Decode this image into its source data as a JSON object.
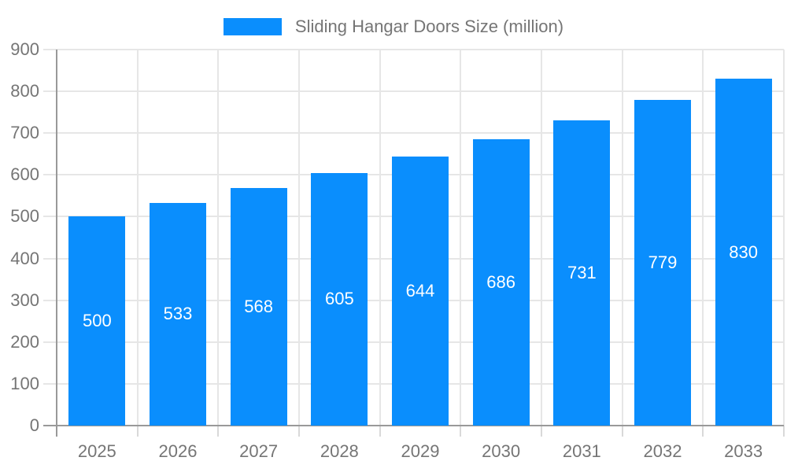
{
  "chart_data": {
    "type": "bar",
    "title": "Sliding Hangar Doors Size (million)",
    "categories": [
      "2025",
      "2026",
      "2027",
      "2028",
      "2029",
      "2030",
      "2031",
      "2032",
      "2033"
    ],
    "values": [
      500,
      533,
      568,
      605,
      644,
      686,
      731,
      779,
      830
    ],
    "xlabel": "",
    "ylabel": "",
    "ylim": [
      0,
      900
    ],
    "yticks": [
      0,
      100,
      200,
      300,
      400,
      500,
      600,
      700,
      800,
      900
    ],
    "grid": true,
    "legend_position": "top-center",
    "bar_labels_inside": true
  },
  "colors": {
    "bar": "#0a8efd",
    "bar_label": "#ffffff",
    "grid": "#e6e6e6",
    "tick": "#d9d9d9",
    "axis": "#999999",
    "text": "#757575",
    "background": "#ffffff"
  }
}
